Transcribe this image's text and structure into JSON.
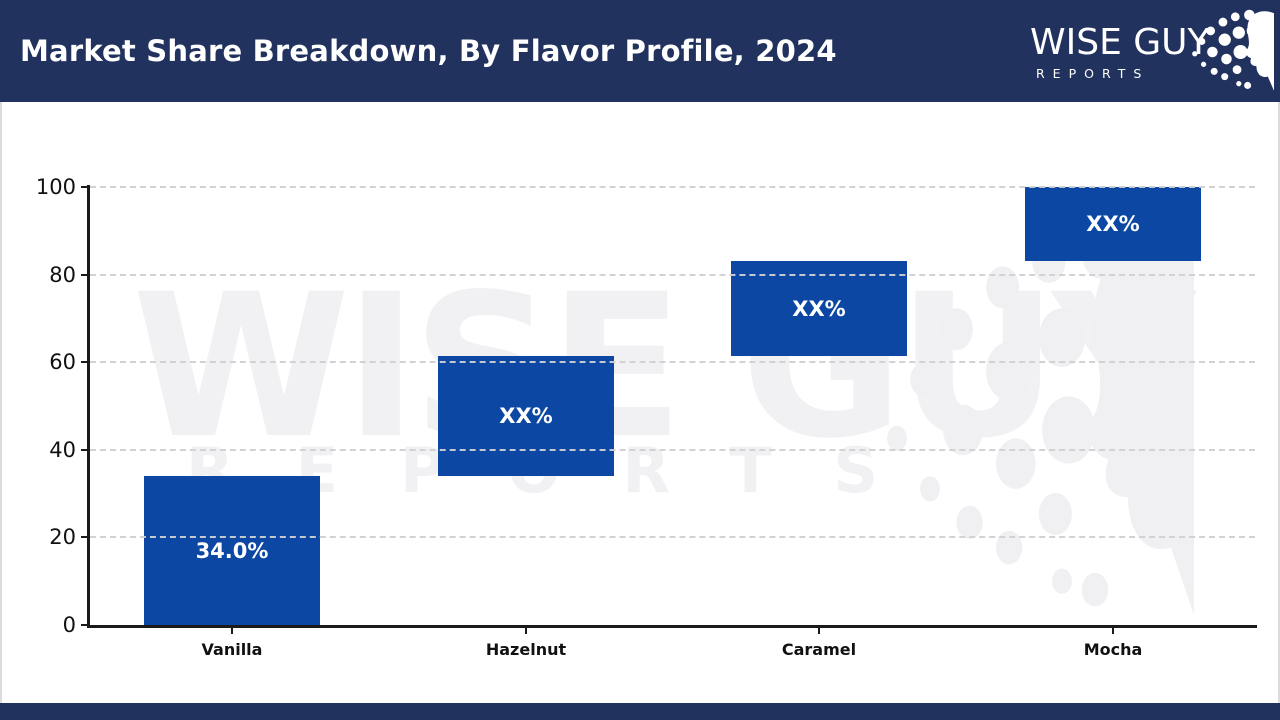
{
  "header": {
    "title": "Market Share Breakdown, By Flavor Profile, 2024",
    "logo": {
      "line1": "WISE GUY",
      "line2": "REPORTS"
    }
  },
  "watermark": {
    "line1": "WISE GUY",
    "line2": "REPORTS"
  },
  "chart_data": {
    "type": "bar",
    "subtype": "waterfall",
    "title": "Market Share Breakdown, By Flavor Profile, 2024",
    "categories": [
      "Vanilla",
      "Hazelnut",
      "Caramel",
      "Mocha"
    ],
    "values": [
      34,
      27.5,
      21.5,
      17
    ],
    "segments": [
      {
        "label": "Vanilla",
        "start": 0,
        "end": 34,
        "value_label": "34.0%"
      },
      {
        "label": "Hazelnut",
        "start": 34,
        "end": 61.5,
        "value_label": "XX%"
      },
      {
        "label": "Caramel",
        "start": 61.5,
        "end": 83,
        "value_label": "XX%"
      },
      {
        "label": "Mocha",
        "start": 83,
        "end": 100,
        "value_label": "XX%"
      }
    ],
    "yticks": [
      0,
      20,
      40,
      60,
      80,
      100
    ],
    "ylim": [
      0,
      105
    ],
    "xlabel": "",
    "ylabel": "",
    "grid": "horizontal-dashed",
    "legend": "none",
    "bar_color": "#0C47A3"
  },
  "colors": {
    "header_bg": "#22325E",
    "footer_bg": "#22325E",
    "bar": "#0C47A3",
    "grid": "#D0D0D2",
    "watermark": "#F1F1F4",
    "axis": "#1A1A1A"
  }
}
